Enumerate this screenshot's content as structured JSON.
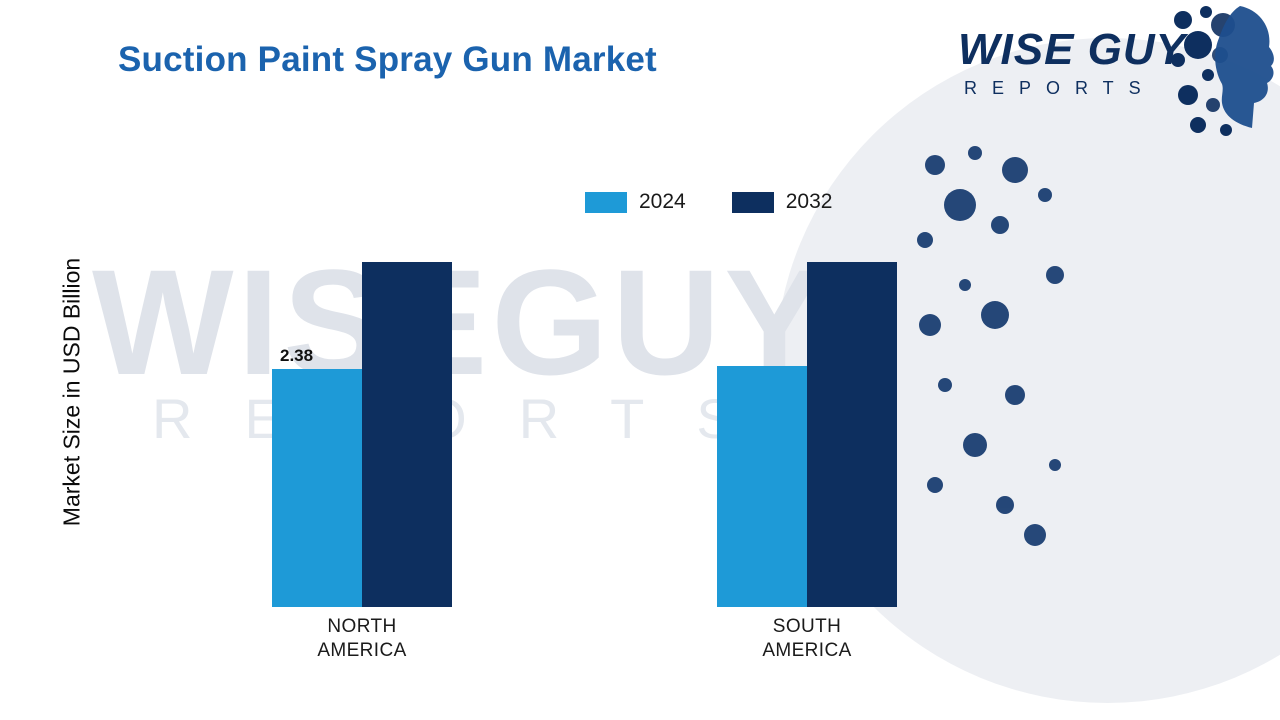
{
  "title": "Suction Paint Spray Gun Market",
  "logo": {
    "name": "WISE GUY",
    "tagline": "REPORTS"
  },
  "watermark": {
    "line1": "WISEGUY",
    "line2": "REPORTS"
  },
  "colors": {
    "title": "#1b63ae",
    "series_2024": "#1e9ad7",
    "series_2032": "#0d2f5f",
    "watermark": "#dfe3ea",
    "background_circle": "#edeff3",
    "logo_navy": "#0e2f5f"
  },
  "chart_data": {
    "type": "bar",
    "title": "Suction Paint Spray Gun Market",
    "xlabel": "",
    "ylabel": "Market Size in USD Billion",
    "categories": [
      "NORTH AMERICA",
      "SOUTH AMERICA"
    ],
    "series": [
      {
        "name": "2024",
        "color": "#1e9ad7",
        "values": [
          2.38,
          2.41
        ],
        "labels": [
          "2.38",
          ""
        ]
      },
      {
        "name": "2032",
        "color": "#0d2f5f",
        "values": [
          3.45,
          3.45
        ],
        "labels": [
          "",
          ""
        ]
      }
    ],
    "ylim": [
      0,
      3.6
    ],
    "grid": false,
    "legend_position": "top",
    "data_label_shown": "2.38"
  }
}
